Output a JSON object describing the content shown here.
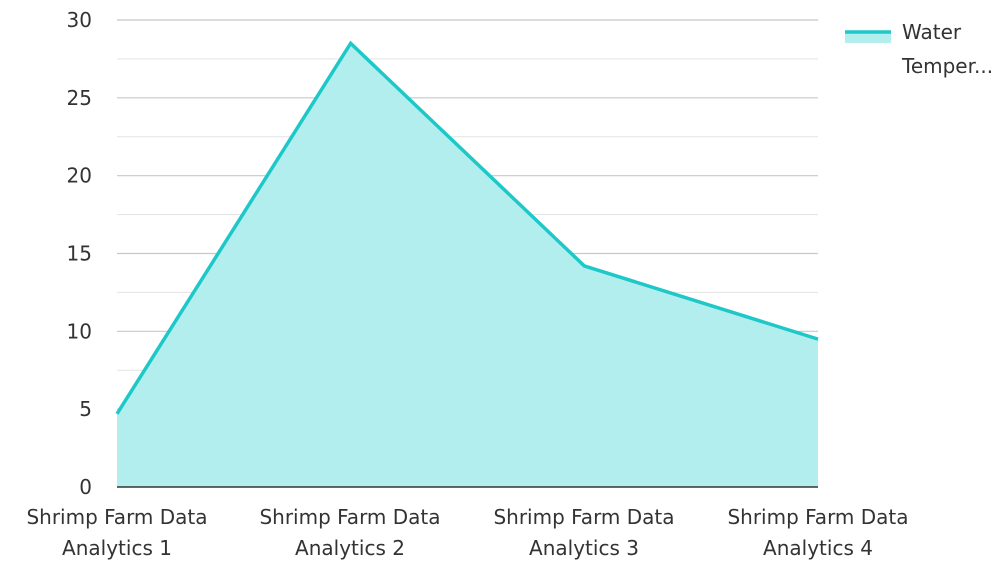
{
  "chart_data": {
    "type": "area",
    "categories": [
      [
        "Shrimp Farm Data",
        "Analytics 1"
      ],
      [
        "Shrimp Farm Data",
        "Analytics 2"
      ],
      [
        "Shrimp Farm Data",
        "Analytics 3"
      ],
      [
        "Shrimp Farm Data",
        "Analytics 4"
      ]
    ],
    "series": [
      {
        "name": "Water Temper...",
        "legend_lines": [
          "Water",
          "Temper..."
        ],
        "values": [
          4.7,
          28.5,
          14.2,
          9.5
        ]
      }
    ],
    "ylim": [
      0,
      30
    ],
    "yticks": [
      0,
      5,
      10,
      15,
      20,
      25,
      30
    ],
    "grid": true,
    "legend_position": "top-right",
    "colors": {
      "line": "#1ec8c8",
      "fill": "#b2eeed",
      "major_grid": "#c8c8c8",
      "minor_grid": "#e3e3e3",
      "axis": "#333333"
    }
  }
}
